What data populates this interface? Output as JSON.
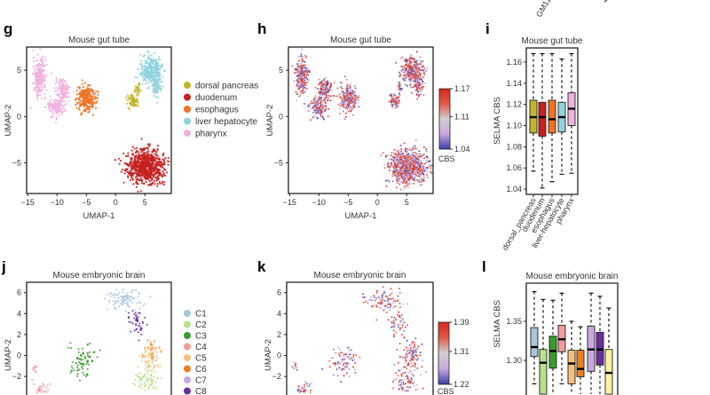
{
  "clipped_top_labels": [
    "GM12"
  ],
  "chart_data": [
    {
      "panel": "g",
      "type": "scatter",
      "title": "Mouse gut tube",
      "xlabel": "UMAP-1",
      "ylabel": "UMAP-2",
      "xlim": [
        -15.2,
        9.5
      ],
      "ylim": [
        -8.3,
        7.5
      ],
      "xticks": [
        -15,
        -10,
        -5,
        0,
        5
      ],
      "yticks": [
        -5,
        0,
        5
      ],
      "color_by": "cell type",
      "legend": [
        {
          "name": "dorsal pancreas",
          "color": "#c4b52e"
        },
        {
          "name": "duodenum",
          "color": "#c42121"
        },
        {
          "name": "esophagus",
          "color": "#ee7424"
        },
        {
          "name": "liver hepatocyte",
          "color": "#8fd3de"
        },
        {
          "name": "pharynx",
          "color": "#f0b3e0"
        }
      ],
      "clusters": [
        {
          "group": "pharynx",
          "center": [
            -13,
            4.3
          ],
          "spread": [
            0.7,
            1.3
          ],
          "n": 260
        },
        {
          "group": "pharynx",
          "center": [
            -9,
            2.8
          ],
          "spread": [
            0.8,
            0.8
          ],
          "n": 140
        },
        {
          "group": "pharynx",
          "center": [
            -10.2,
            1.0
          ],
          "spread": [
            1.0,
            0.7
          ],
          "n": 140
        },
        {
          "group": "esophagus",
          "center": [
            -5,
            2.0
          ],
          "spread": [
            1.0,
            0.9
          ],
          "n": 260
        },
        {
          "group": "dorsal pancreas",
          "center": [
            3.0,
            1.7
          ],
          "spread": [
            0.7,
            0.5
          ],
          "n": 70
        },
        {
          "group": "dorsal pancreas",
          "center": [
            3.8,
            3.0
          ],
          "spread": [
            0.3,
            0.4
          ],
          "n": 20
        },
        {
          "group": "liver hepatocyte",
          "center": [
            6.0,
            5.0
          ],
          "spread": [
            1.2,
            0.9
          ],
          "n": 300
        },
        {
          "group": "liver hepatocyte",
          "center": [
            7.0,
            3.4
          ],
          "spread": [
            0.5,
            0.8
          ],
          "n": 80
        },
        {
          "group": "duodenum",
          "center": [
            5.2,
            -5.4
          ],
          "spread": [
            2.2,
            1.2
          ],
          "n": 750
        }
      ]
    },
    {
      "panel": "h",
      "type": "scatter",
      "title": "Mouse gut tube",
      "xlabel": "UMAP-1",
      "ylabel": "UMAP-2",
      "xlim": [
        -15.2,
        9.5
      ],
      "ylim": [
        -8.3,
        7.5
      ],
      "xticks": [
        -15,
        -10,
        -5,
        0,
        5
      ],
      "yticks": [
        -5,
        0,
        5
      ],
      "color_by": "CBS",
      "colorbar": {
        "label": "CBS",
        "min": 1.04,
        "mid": 1.11,
        "max": 1.17,
        "ticks": [
          "1.17",
          "1.11",
          "1.04"
        ],
        "colors": [
          "#3b3fa8",
          "#c9a6e0",
          "#d0d0d0",
          "#e05a48",
          "#d8261c"
        ]
      }
    },
    {
      "panel": "i",
      "type": "box",
      "title": "Mouse gut tube",
      "ylabel": "SELMA CBS",
      "ylim": [
        1.035,
        1.173
      ],
      "yticks": [
        "1.04",
        "1.06",
        "1.08",
        "1.10",
        "1.12",
        "1.14",
        "1.16"
      ],
      "categories": [
        "dorsal_pancreas",
        "duodenum",
        "esophagus",
        "liver-hepatocyte",
        "pharynx"
      ],
      "colors": [
        "#c4b52e",
        "#c42121",
        "#ee7424",
        "#8fd3de",
        "#f0b3e0"
      ],
      "boxes": [
        {
          "low": 1.057,
          "q1": 1.093,
          "median": 1.108,
          "q3": 1.124,
          "high": 1.168
        },
        {
          "low": 1.041,
          "q1": 1.09,
          "median": 1.108,
          "q3": 1.122,
          "high": 1.168
        },
        {
          "low": 1.047,
          "q1": 1.093,
          "median": 1.106,
          "q3": 1.124,
          "high": 1.168
        },
        {
          "low": 1.054,
          "q1": 1.094,
          "median": 1.108,
          "q3": 1.122,
          "high": 1.163
        },
        {
          "low": 1.055,
          "q1": 1.1,
          "median": 1.116,
          "q3": 1.131,
          "high": 1.168
        }
      ]
    },
    {
      "panel": "j",
      "type": "scatter",
      "title": "Mouse embryonic brain",
      "xlabel": "",
      "ylabel": "UMAP-2",
      "xlim": [
        -6,
        7.8
      ],
      "ylim": [
        -4.5,
        6.9
      ],
      "yticks": [
        -2,
        0,
        2,
        4,
        6
      ],
      "color_by": "cluster",
      "legend": [
        {
          "name": "C1",
          "color": "#a6c6dc"
        },
        {
          "name": "C2",
          "color": "#b9e08a"
        },
        {
          "name": "C3",
          "color": "#3a9a2e"
        },
        {
          "name": "C4",
          "color": "#f29c9c"
        },
        {
          "name": "C5",
          "color": "#f6c07c"
        },
        {
          "name": "C6",
          "color": "#ee7f22"
        },
        {
          "name": "C7",
          "color": "#c9a9dd"
        },
        {
          "name": "C8",
          "color": "#6a2f9a"
        }
      ],
      "clusters": [
        {
          "group": "C1",
          "center": [
            3.3,
            5.3
          ],
          "spread": [
            1.1,
            0.6
          ],
          "n": 90
        },
        {
          "group": "C8",
          "center": [
            4.6,
            3.0
          ],
          "spread": [
            0.5,
            0.8
          ],
          "n": 45
        },
        {
          "group": "C6",
          "center": [
            6.0,
            0.6
          ],
          "spread": [
            0.5,
            0.6
          ],
          "n": 30
        },
        {
          "group": "C5",
          "center": [
            5.8,
            -0.2
          ],
          "spread": [
            0.7,
            0.8
          ],
          "n": 60
        },
        {
          "group": "C2",
          "center": [
            5.4,
            -2.3
          ],
          "spread": [
            0.8,
            1.0
          ],
          "n": 80
        },
        {
          "group": "C3",
          "center": [
            -0.6,
            -0.6
          ],
          "spread": [
            0.8,
            1.0
          ],
          "n": 80
        },
        {
          "group": "C4",
          "center": [
            -4.5,
            -3.4
          ],
          "spread": [
            0.7,
            0.7
          ],
          "n": 50
        },
        {
          "group": "C4",
          "center": [
            -5.2,
            -1.1
          ],
          "spread": [
            0.2,
            0.3
          ],
          "n": 10
        }
      ]
    },
    {
      "panel": "k",
      "type": "scatter",
      "title": "Mouse embryonic brain",
      "xlabel": "",
      "ylabel": "UMAP-2",
      "xlim": [
        -6,
        7.8
      ],
      "ylim": [
        -4.5,
        6.9
      ],
      "yticks": [
        -2,
        0,
        2,
        4,
        6
      ],
      "color_by": "CBS",
      "colorbar": {
        "label": "CBS",
        "min": 1.22,
        "mid": 1.31,
        "max": 1.39,
        "ticks": [
          "1.39",
          "1.31",
          "1.22"
        ],
        "colors": [
          "#3b3fa8",
          "#c9a6e0",
          "#d0d0d0",
          "#e05a48",
          "#d8261c"
        ]
      }
    },
    {
      "panel": "l",
      "type": "box",
      "title": "Mouse embryonic brain",
      "ylabel": "SELMA CBS",
      "ylim": [
        1.23,
        1.4
      ],
      "yticks": [
        "1.30",
        "1.35"
      ],
      "colors": [
        "#a6c6dc",
        "#b9e08a",
        "#3a9a2e",
        "#f29c9c",
        "#f6c07c",
        "#ee7f22",
        "#c9a9dd",
        "#6a2f9a",
        "#fdf2a0"
      ],
      "boxes": [
        {
          "low": 1.27,
          "q1": 1.305,
          "median": 1.317,
          "q3": 1.342,
          "high": 1.388
        },
        {
          "low": 1.22,
          "q1": 1.255,
          "median": 1.297,
          "q3": 1.314,
          "high": 1.378
        },
        {
          "low": 1.22,
          "q1": 1.29,
          "median": 1.312,
          "q3": 1.331,
          "high": 1.377
        },
        {
          "low": 1.27,
          "q1": 1.311,
          "median": 1.327,
          "q3": 1.345,
          "high": 1.386
        },
        {
          "low": 1.22,
          "q1": 1.27,
          "median": 1.296,
          "q3": 1.313,
          "high": 1.35
        },
        {
          "low": 1.22,
          "q1": 1.279,
          "median": 1.289,
          "q3": 1.313,
          "high": 1.343
        },
        {
          "low": 1.22,
          "q1": 1.286,
          "median": 1.314,
          "q3": 1.344,
          "high": 1.386
        },
        {
          "low": 1.22,
          "q1": 1.294,
          "median": 1.314,
          "q3": 1.336,
          "high": 1.382
        },
        {
          "low": 1.22,
          "q1": 1.256,
          "median": 1.284,
          "q3": 1.314,
          "high": 1.367
        }
      ]
    }
  ]
}
